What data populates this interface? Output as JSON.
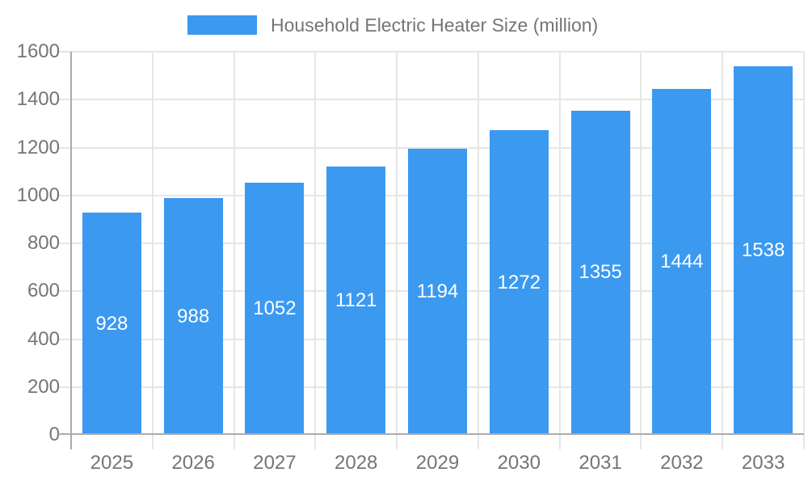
{
  "legend": {
    "label": "Household Electric Heater Size (million)"
  },
  "colors": {
    "bar": "#3B99F0",
    "axis_line": "#ABABAB",
    "grid_line": "#E6E6E6",
    "tick_label": "#757575",
    "value_label": "#FFFFFF",
    "background": "#FFFFFF"
  },
  "chart_data": {
    "type": "bar",
    "title": "Household Electric Heater Size (million)",
    "categories": [
      "2025",
      "2026",
      "2027",
      "2028",
      "2029",
      "2030",
      "2031",
      "2032",
      "2033"
    ],
    "values": [
      928,
      988,
      1052,
      1121,
      1194,
      1272,
      1355,
      1444,
      1538
    ],
    "series": [
      {
        "name": "Household Electric Heater Size (million)",
        "values": [
          928,
          988,
          1052,
          1121,
          1194,
          1272,
          1355,
          1444,
          1538
        ]
      }
    ],
    "xlabel": "",
    "ylabel": "",
    "ylim": [
      0,
      1600
    ],
    "ytick_step": 200,
    "yticks": [
      0,
      200,
      400,
      600,
      800,
      1000,
      1200,
      1400,
      1600
    ],
    "grid": "horizontal-and-vertical",
    "legend_position": "top-center",
    "value_label_position": "inside-center"
  }
}
